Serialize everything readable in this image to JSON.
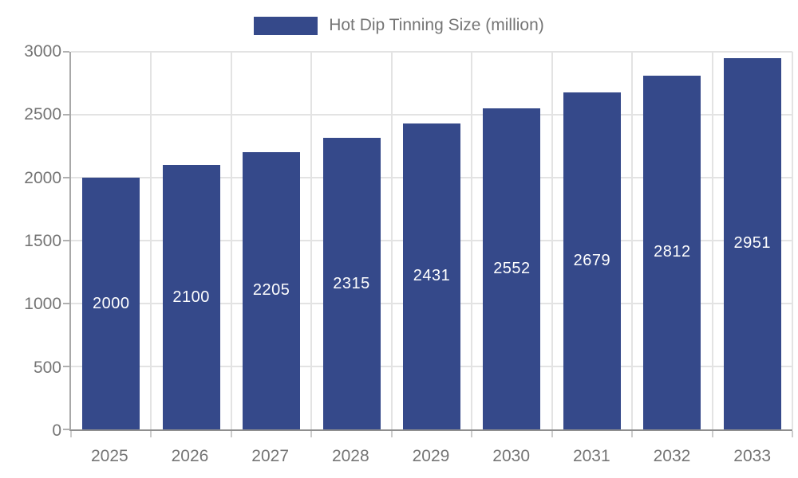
{
  "chart_data": {
    "type": "bar",
    "title": "",
    "legend": "Hot Dip Tinning Size (million)",
    "legend_position": "top-center",
    "categories": [
      "2025",
      "2026",
      "2027",
      "2028",
      "2029",
      "2030",
      "2031",
      "2032",
      "2033"
    ],
    "values": [
      2000,
      2100,
      2205,
      2315,
      2431,
      2552,
      2679,
      2812,
      2951
    ],
    "xlabel": "",
    "ylabel": "",
    "ylim": [
      0,
      3000
    ],
    "yticks": [
      0,
      500,
      1000,
      1500,
      2000,
      2500,
      3000
    ],
    "grid": true,
    "bar_color": "#35498a",
    "bar_label_color": "#ffffff",
    "axis_text_color": "#757575",
    "grid_color": "#e3e3e3"
  }
}
